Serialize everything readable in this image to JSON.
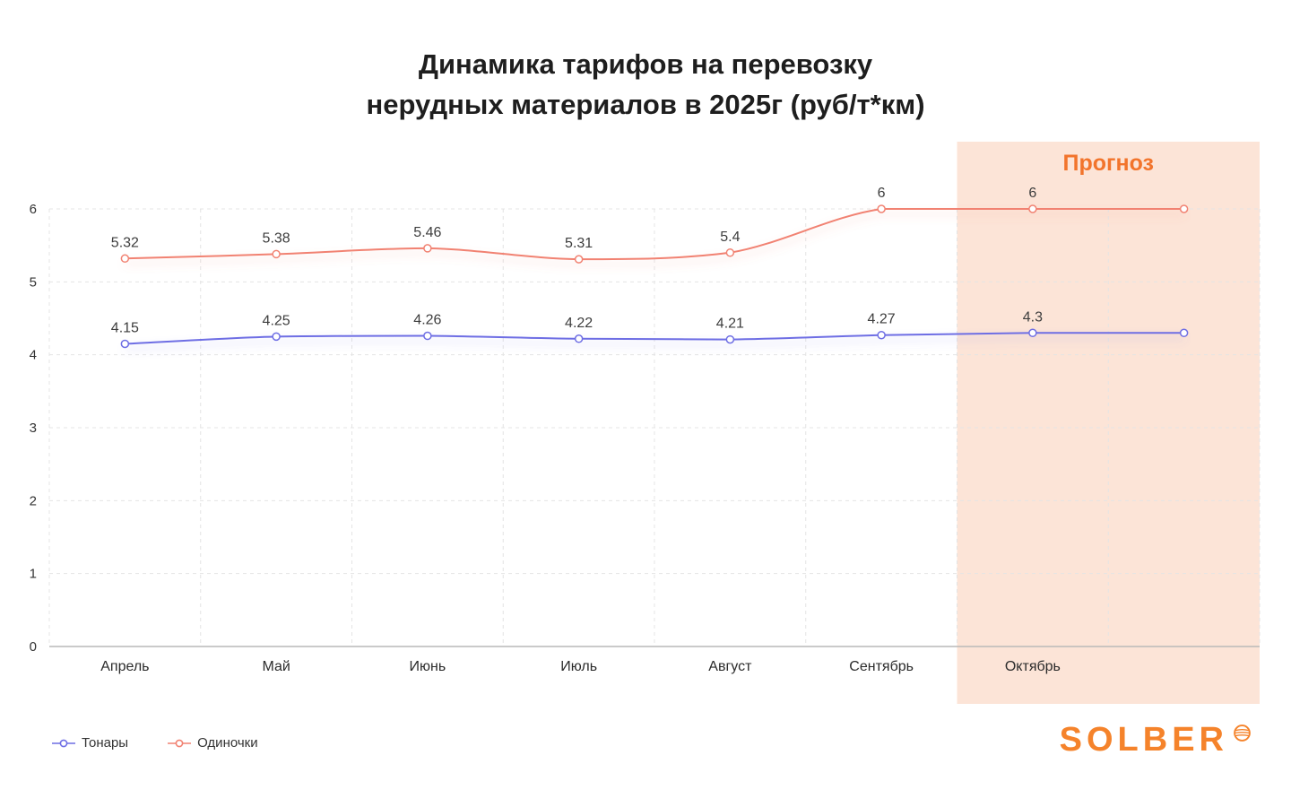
{
  "title": {
    "line1": "Динамика тарифов на перевозку",
    "line2": "нерудных материалов в 2025г (руб/т*км)"
  },
  "forecast_label": "Прогноз",
  "legend": [
    {
      "label": "Тонары",
      "color": "#6e6ee4"
    },
    {
      "label": "Одиночки",
      "color": "#f18272"
    }
  ],
  "logo": {
    "text": "SOLBER",
    "color": "#f5832b"
  },
  "chart_data": {
    "type": "line",
    "title": "Динамика тарифов на перевозку нерудных материалов в 2025г (руб/т*км)",
    "categories": [
      "Апрель",
      "Май",
      "Июнь",
      "Июль",
      "Август",
      "Сентябрь",
      "Октябрь",
      ""
    ],
    "series": [
      {
        "name": "Тонары",
        "color": "#6e6ee4",
        "values": [
          4.15,
          4.25,
          4.26,
          4.22,
          4.21,
          4.27,
          4.3,
          4.3
        ],
        "labels": [
          "4.15",
          "4.25",
          "4.26",
          "4.22",
          "4.21",
          "4.27",
          "4.3",
          ""
        ]
      },
      {
        "name": "Одиночки",
        "color": "#f18272",
        "values": [
          5.32,
          5.38,
          5.46,
          5.31,
          5.4,
          6,
          6,
          6
        ],
        "labels": [
          "5.32",
          "5.38",
          "5.46",
          "5.31",
          "5.4",
          "6",
          "6",
          ""
        ]
      }
    ],
    "xlabel": "",
    "ylabel": "",
    "ylim": [
      0,
      6
    ],
    "yticks": [
      0,
      1,
      2,
      3,
      4,
      5,
      6
    ],
    "grid": "dashed",
    "legend_position": "bottom-left",
    "forecast_start_band": 6,
    "forecast_color": "#fce4d7",
    "forecast_label_color": "#f2742c"
  }
}
